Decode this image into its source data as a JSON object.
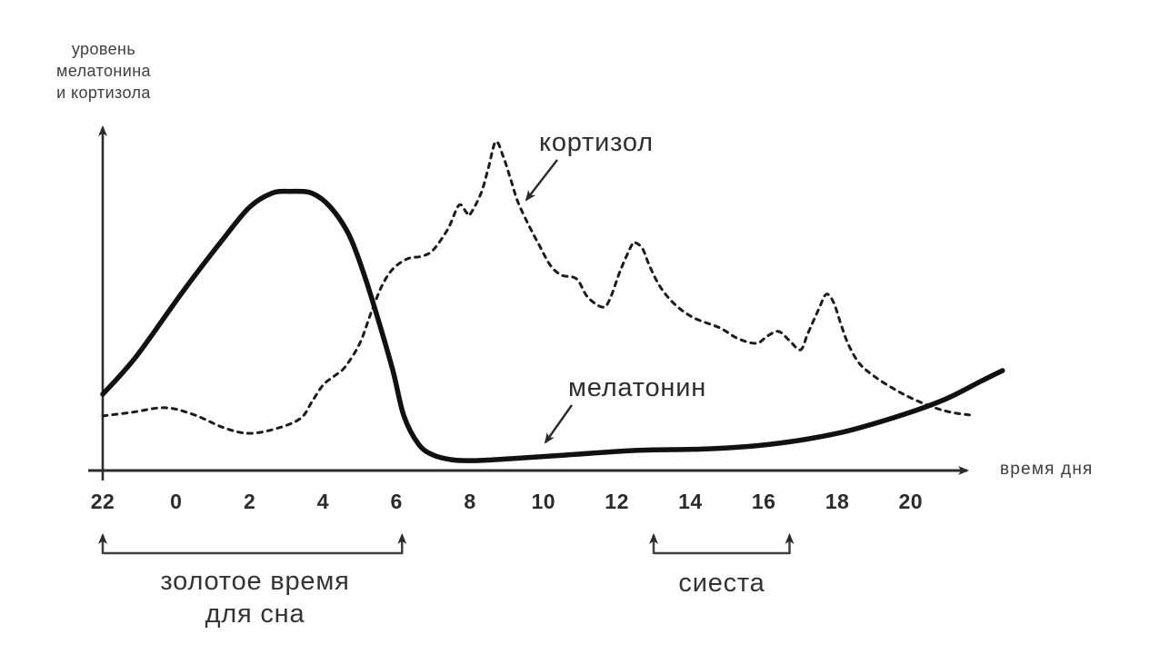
{
  "chart_data": {
    "type": "line",
    "title": "",
    "ylabel": "уровень мелатонина и кортизола",
    "ylabel_lines": [
      "уровень",
      "мелатонина",
      "и кортизола"
    ],
    "xlabel": "время дня",
    "x_tick_labels": [
      "22",
      "0",
      "2",
      "4",
      "6",
      "8",
      "10",
      "12",
      "14",
      "16",
      "18",
      "20"
    ],
    "x_tick_step_hours": 2,
    "x_unit": "hours_since_22h",
    "y_axis": {
      "range": [
        0,
        100
      ],
      "ticks_visible": false
    },
    "grid": false,
    "legend_position": "inline-annotations",
    "colors": {
      "curve": "#161616",
      "axis": "#2d2d2d",
      "bracket": "#3f3f3f",
      "text": "#3b3b3b"
    },
    "series": [
      {
        "name": "cortisol",
        "label": "кортизол",
        "line_style": "dashed",
        "color": "#1c1c1c",
        "points": [
          [
            0,
            16.6
          ],
          [
            0.8,
            17.7
          ],
          [
            1.7,
            19.1
          ],
          [
            2.5,
            16.9
          ],
          [
            3.3,
            13.0
          ],
          [
            4.0,
            11.3
          ],
          [
            4.8,
            13.0
          ],
          [
            5.4,
            16.0
          ],
          [
            5.7,
            21.0
          ],
          [
            6.0,
            26.0
          ],
          [
            6.3,
            28.7
          ],
          [
            6.6,
            31.5
          ],
          [
            7.0,
            38.7
          ],
          [
            7.3,
            47.8
          ],
          [
            7.6,
            56.1
          ],
          [
            7.9,
            61.3
          ],
          [
            8.3,
            64.4
          ],
          [
            8.7,
            65.2
          ],
          [
            9.0,
            67.1
          ],
          [
            9.4,
            73.5
          ],
          [
            9.7,
            80.7
          ],
          [
            9.9,
            78.5
          ],
          [
            10.0,
            77.9
          ],
          [
            10.3,
            84.3
          ],
          [
            10.5,
            92.0
          ],
          [
            10.7,
            100
          ],
          [
            10.9,
            95.6
          ],
          [
            11.1,
            88.9
          ],
          [
            11.3,
            81.8
          ],
          [
            11.6,
            74.6
          ],
          [
            11.9,
            68.2
          ],
          [
            12.2,
            62.2
          ],
          [
            12.5,
            59.4
          ],
          [
            12.9,
            58.3
          ],
          [
            13.2,
            52.8
          ],
          [
            13.6,
            49.7
          ],
          [
            13.8,
            51.9
          ],
          [
            14.1,
            61.0
          ],
          [
            14.4,
            68.5
          ],
          [
            14.5,
            69.3
          ],
          [
            14.7,
            67.4
          ],
          [
            14.9,
            61.9
          ],
          [
            15.2,
            55.5
          ],
          [
            15.6,
            50.3
          ],
          [
            16.1,
            46.4
          ],
          [
            16.8,
            43.4
          ],
          [
            17.3,
            40.1
          ],
          [
            17.8,
            38.7
          ],
          [
            18.1,
            40.9
          ],
          [
            18.4,
            42.3
          ],
          [
            18.7,
            39.5
          ],
          [
            19.0,
            36.7
          ],
          [
            19.2,
            41.7
          ],
          [
            19.5,
            49.2
          ],
          [
            19.7,
            53.6
          ],
          [
            19.9,
            51.1
          ],
          [
            20.1,
            44.5
          ],
          [
            20.3,
            38.4
          ],
          [
            20.6,
            32.6
          ],
          [
            21.0,
            28.7
          ],
          [
            21.5,
            25.1
          ],
          [
            22.0,
            22.1
          ],
          [
            22.6,
            19.3
          ],
          [
            23.1,
            17.7
          ],
          [
            23.6,
            16.9
          ]
        ]
      },
      {
        "name": "melatonin",
        "label": "мелатонин",
        "line_style": "solid",
        "color": "#111111",
        "points": [
          [
            0,
            23.2
          ],
          [
            0.9,
            34.5
          ],
          [
            2.2,
            54.7
          ],
          [
            3.3,
            70.7
          ],
          [
            4.0,
            80.1
          ],
          [
            4.6,
            84.3
          ],
          [
            5.1,
            84.9
          ],
          [
            5.7,
            84.3
          ],
          [
            6.2,
            80.1
          ],
          [
            6.7,
            71.8
          ],
          [
            7.1,
            60.2
          ],
          [
            7.5,
            45.9
          ],
          [
            7.9,
            30.4
          ],
          [
            8.2,
            16.6
          ],
          [
            8.6,
            8.0
          ],
          [
            9.0,
            4.7
          ],
          [
            9.5,
            3.3
          ],
          [
            10.1,
            3.0
          ],
          [
            11.1,
            3.6
          ],
          [
            12.6,
            4.7
          ],
          [
            14.5,
            6.1
          ],
          [
            16.5,
            6.6
          ],
          [
            18.2,
            8.0
          ],
          [
            20.0,
            11.3
          ],
          [
            21.6,
            16.3
          ],
          [
            22.9,
            21.5
          ],
          [
            23.9,
            27.1
          ],
          [
            24.5,
            30.4
          ]
        ]
      }
    ],
    "annotations": [
      {
        "type": "range-bracket",
        "name": "golden-sleep-time",
        "label_lines": [
          "золотое время",
          "для сна"
        ],
        "from_hour": 22,
        "to_hour": 6.15
      },
      {
        "type": "range-bracket",
        "name": "siesta",
        "label_lines": [
          "сиеста"
        ],
        "from_hour": 13,
        "to_hour": 16.7
      }
    ]
  }
}
